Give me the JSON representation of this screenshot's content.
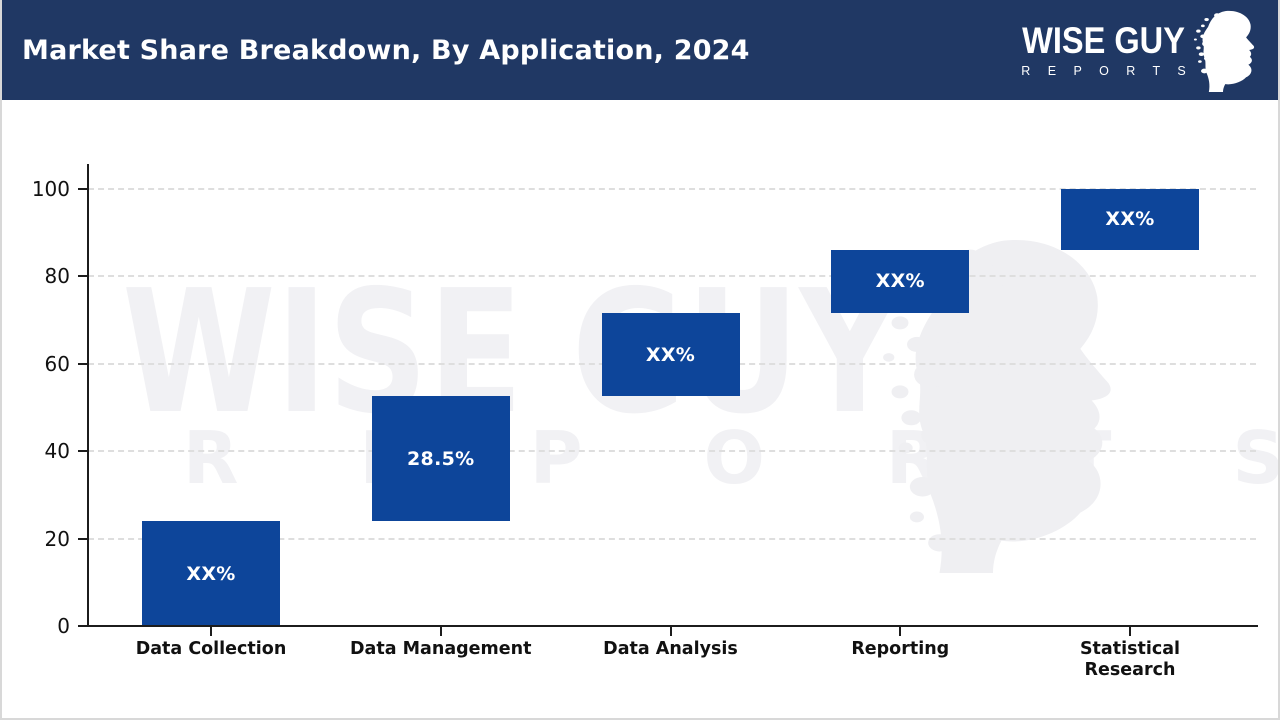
{
  "header": {
    "title": "Market Share Breakdown, By Application, 2024",
    "bg_color": "#203864",
    "logo": {
      "line1": "WISE GUY",
      "line2": "R E P O R T S"
    }
  },
  "watermark": {
    "line1": "WISE GUY",
    "line2": "R E P O R T S"
  },
  "chart_data": {
    "type": "bar",
    "subtype": "waterfall-floating-segments",
    "title": "Market Share Breakdown, By Application, 2024",
    "categories": [
      "Data Collection",
      "Data Management",
      "Data Analysis",
      "Reporting",
      "Statistical\nResearch"
    ],
    "segments": [
      {
        "category": "Data Collection",
        "start": 0,
        "end": 24,
        "label": "XX%"
      },
      {
        "category": "Data Management",
        "start": 24,
        "end": 52.5,
        "label": "28.5%"
      },
      {
        "category": "Data Analysis",
        "start": 52.5,
        "end": 71.5,
        "label": "XX%"
      },
      {
        "category": "Reporting",
        "start": 71.5,
        "end": 86,
        "label": "XX%"
      },
      {
        "category": "Statistical Research",
        "start": 86,
        "end": 100,
        "label": "XX%"
      }
    ],
    "yticks": [
      0,
      20,
      40,
      60,
      80,
      100
    ],
    "ylim": [
      0,
      105.5
    ],
    "xlabel": "",
    "ylabel": "",
    "grid": "horizontal-dashed",
    "legend": "none",
    "bar_color": "#0d459a",
    "bar_label_color": "#ffffff"
  }
}
